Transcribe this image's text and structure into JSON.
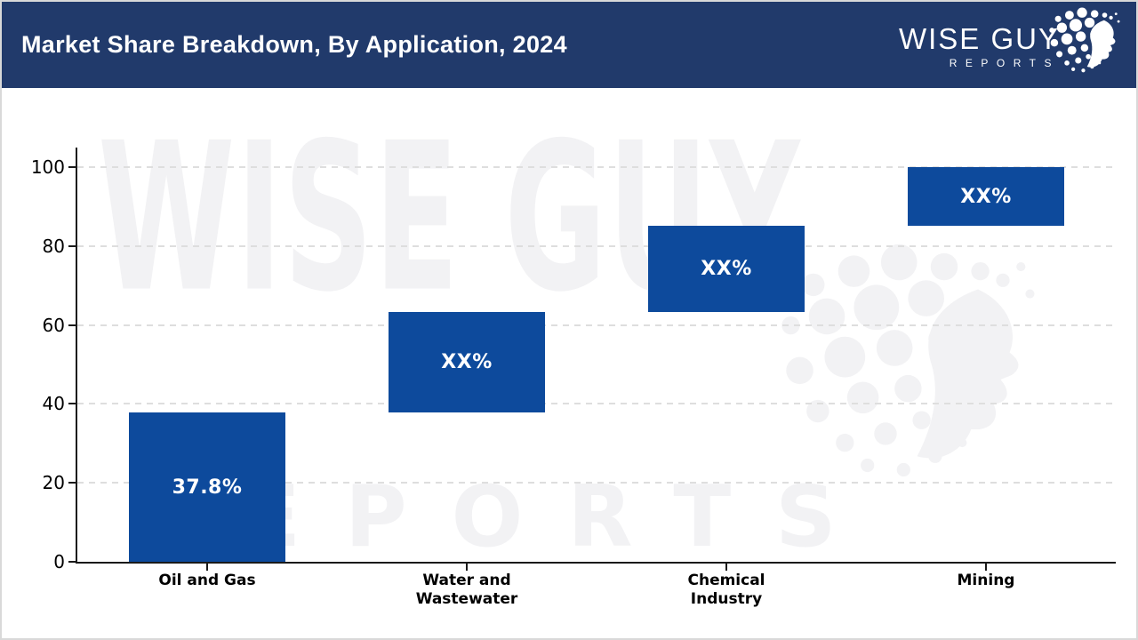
{
  "header": {
    "title": "Market Share Breakdown, By Application, 2024",
    "logo": {
      "line1": "WISE GUY",
      "line2": "REPORTS"
    }
  },
  "watermark": {
    "line1": "WISE GUY",
    "line2": "REPORTS"
  },
  "chart_data": {
    "type": "bar",
    "subtype": "waterfall",
    "title": "Market Share Breakdown, By Application, 2024",
    "categories": [
      "Oil and Gas",
      "Water and Wastewater",
      "Chemical Industry",
      "Mining"
    ],
    "segments": [
      {
        "category": "Oil and Gas",
        "start": 0,
        "end": 37.8,
        "label": "37.8%"
      },
      {
        "category": "Water and Wastewater",
        "start": 37.8,
        "end": 63.4,
        "label": "XX%"
      },
      {
        "category": "Chemical Industry",
        "start": 63.4,
        "end": 85.2,
        "label": "XX%"
      },
      {
        "category": "Mining",
        "start": 85.2,
        "end": 100,
        "label": "XX%"
      }
    ],
    "yticks": [
      0,
      20,
      40,
      60,
      80,
      100
    ],
    "ylim": [
      0,
      105
    ],
    "xlabel": "",
    "ylabel": "",
    "grid": "dashed-horizontal",
    "legend": "none",
    "bar_color": "#0d4a9c",
    "value_label_color": "#ffffff",
    "axis_color": "#1a1a1a",
    "header_color": "#213a6b"
  }
}
